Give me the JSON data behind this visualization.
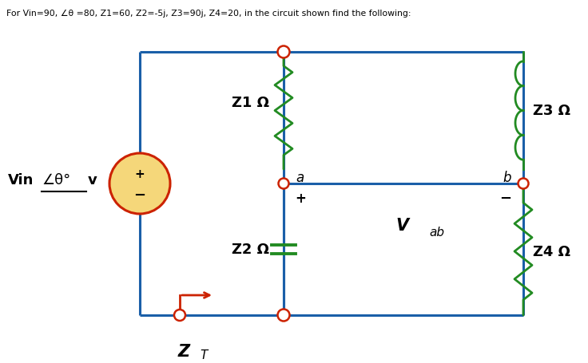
{
  "title": "For Vin=90, ∠θ =80, Z1=60, Z2=-5j, Z3=90j, Z4=20, in the circuit shown find the following:",
  "bg_color": "#ffffff",
  "circuit_color": "#1a5fa8",
  "resistor_color": "#228B22",
  "inductor_color": "#228B22",
  "source_fill": "#f5d77a",
  "source_border": "#cc2200",
  "terminal_color": "#cc2200",
  "arrow_color": "#cc2200",
  "z1_label": "Z1 Ω",
  "z2_label": "Z2 Ω",
  "z3_label": "Z3 Ω",
  "z4_label": "Z4 Ω",
  "a_label": "a",
  "b_label": "b",
  "plus_label": "+",
  "minus_label": "−",
  "vab_label": "V",
  "vab_sub": "ab",
  "zt_label": "Z",
  "zt_sub": "T",
  "lw_wire": 2.2,
  "lw_component": 2.0
}
